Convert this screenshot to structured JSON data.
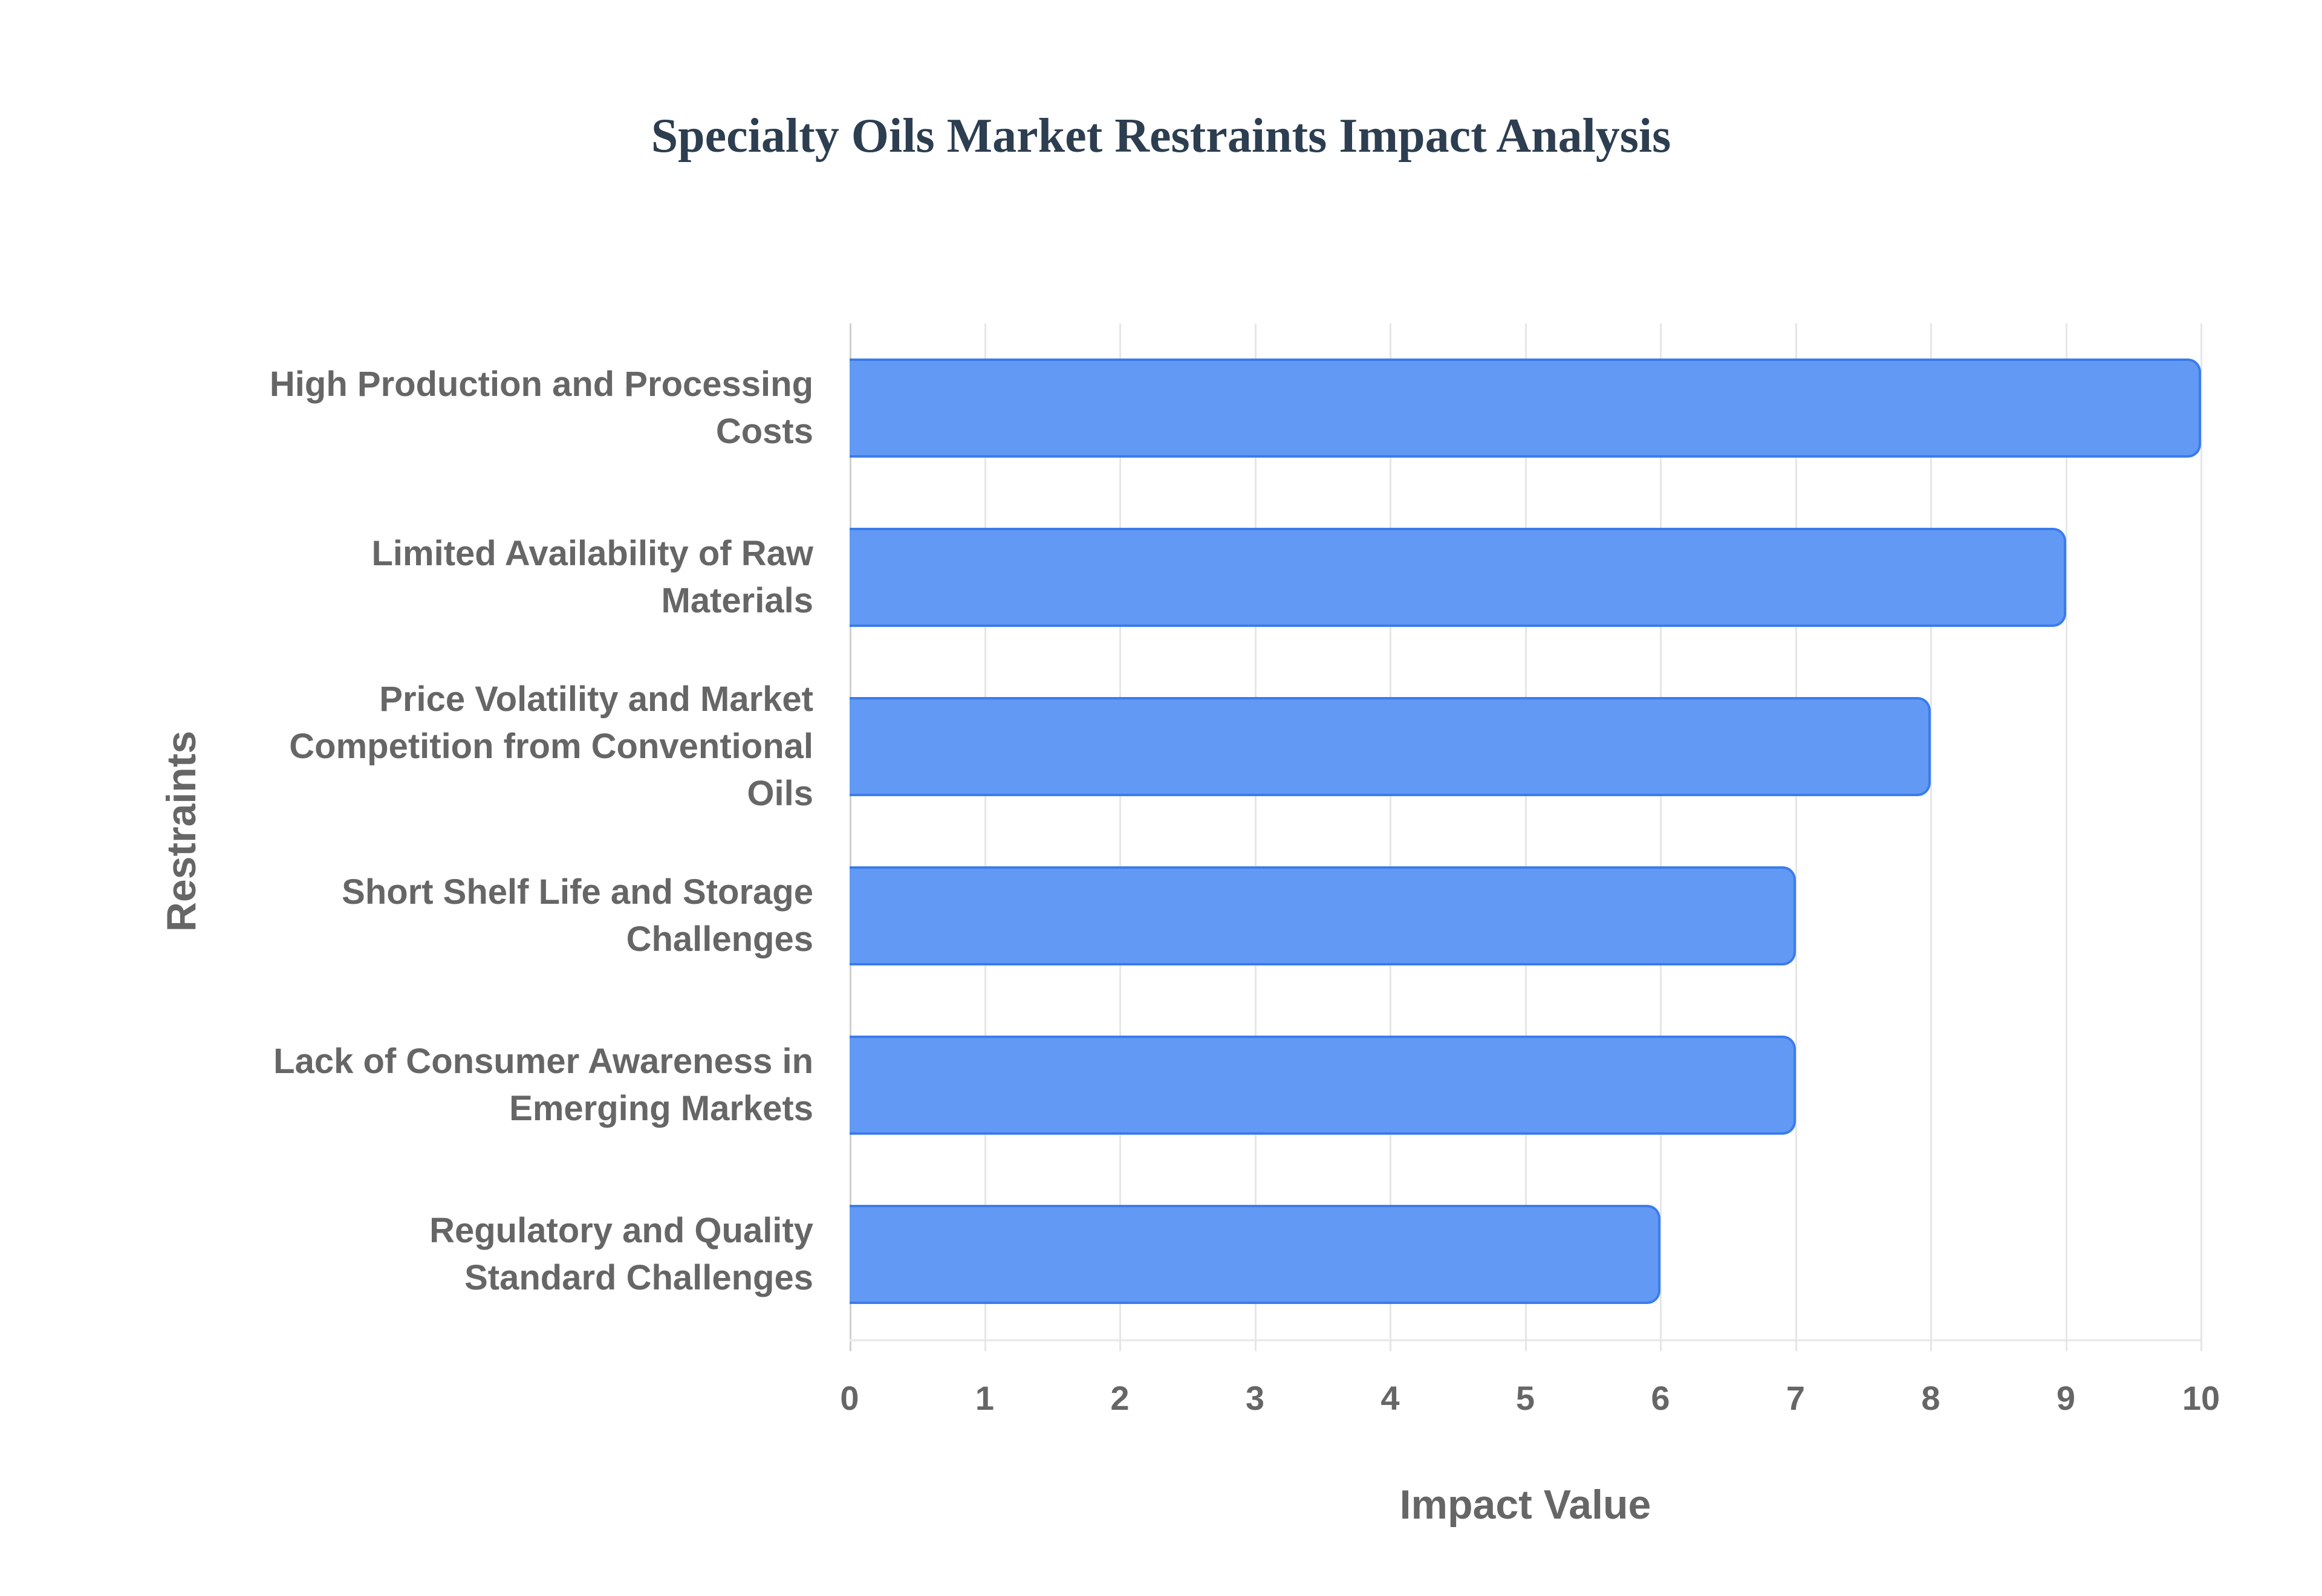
{
  "chart_data": {
    "type": "bar",
    "orientation": "horizontal",
    "title": "Specialty Oils Market Restraints Impact Analysis",
    "xlabel": "Impact Value",
    "ylabel": "Restraints",
    "xlim": [
      0,
      10
    ],
    "x_ticks": [
      "0",
      "1",
      "2",
      "3",
      "4",
      "5",
      "6",
      "7",
      "8",
      "9",
      "10"
    ],
    "grid": true,
    "legend": null,
    "bar_color": "#6199f4",
    "bar_border_color": "#3b7ceb",
    "categories": [
      "High Production and Processing Costs",
      "Limited Availability of Raw Materials",
      "Price Volatility and Market Competition from Conventional Oils",
      "Short Shelf Life and Storage Challenges",
      "Lack of Consumer Awareness in Emerging Markets",
      "Regulatory and Quality Standard Challenges"
    ],
    "category_lines": [
      [
        "High Production and Processing",
        "Costs"
      ],
      [
        "Limited Availability of Raw",
        "Materials"
      ],
      [
        "Price Volatility and Market",
        "Competition from Conventional",
        "Oils"
      ],
      [
        "Short Shelf Life and Storage",
        "Challenges"
      ],
      [
        "Lack of Consumer Awareness in",
        "Emerging Markets"
      ],
      [
        "Regulatory and Quality",
        "Standard Challenges"
      ]
    ],
    "values": [
      10,
      9,
      8,
      7,
      7,
      6
    ]
  }
}
